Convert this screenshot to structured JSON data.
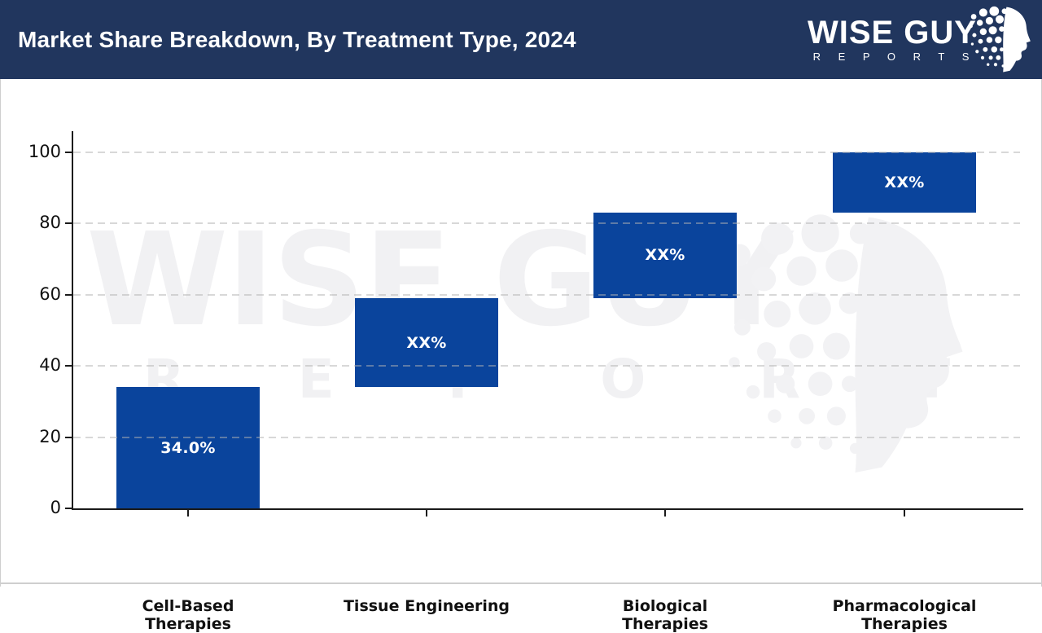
{
  "header": {
    "title": "Market Share Breakdown, By Treatment Type, 2024",
    "logo": {
      "line1": "WISE GUY",
      "line2": "R E P O R T S"
    }
  },
  "watermark": {
    "line1": "WISE GUY",
    "line2": "R E P O R T S"
  },
  "colors": {
    "header_bg": "#21365e",
    "bar": "#0a449c",
    "bar_label": "#ffffff",
    "grid": "#d6d6d6",
    "watermark": "#f1f1f3"
  },
  "chart_data": {
    "type": "bar",
    "variant": "waterfall",
    "title": "Market Share Breakdown, By Treatment Type, 2024",
    "unit": "%",
    "categories": [
      [
        "Cell-Based",
        "Therapies"
      ],
      [
        "Tissue Engineering"
      ],
      [
        "Biological",
        "Therapies"
      ],
      [
        "Pharmacological",
        "Therapies"
      ]
    ],
    "segments": [
      {
        "category": "Cell-Based Therapies",
        "label": "34.0%",
        "value": 34,
        "start": 0,
        "end": 34
      },
      {
        "category": "Tissue Engineering",
        "label": "XX%",
        "value": 25,
        "start": 34,
        "end": 59
      },
      {
        "category": "Biological Therapies",
        "label": "XX%",
        "value": 24,
        "start": 59,
        "end": 83
      },
      {
        "category": "Pharmacological Therapies",
        "label": "XX%",
        "value": 17,
        "start": 83,
        "end": 100
      }
    ],
    "ylim": [
      0,
      100
    ],
    "yticks": [
      0,
      20,
      40,
      60,
      80,
      100
    ],
    "grid": "horizontal-dashed",
    "legend": null,
    "bar_color": "#0a449c",
    "bar_label_color": "#ffffff"
  }
}
